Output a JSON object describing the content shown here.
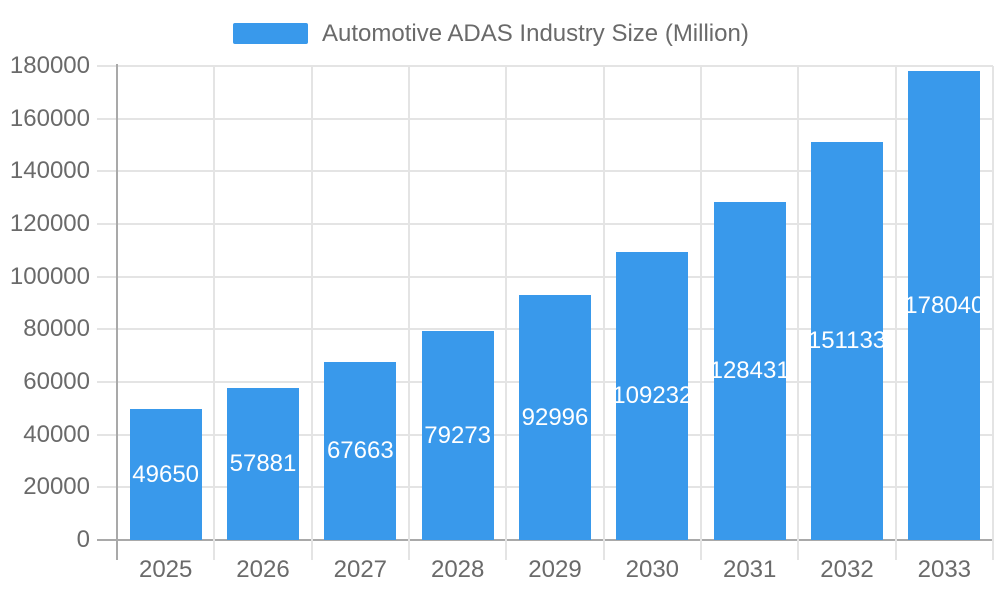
{
  "legend": {
    "label": "Automotive ADAS Industry Size (Million)"
  },
  "chart_data": {
    "type": "bar",
    "title": "Automotive ADAS Industry Size (Million)",
    "categories": [
      "2025",
      "2026",
      "2027",
      "2028",
      "2029",
      "2030",
      "2031",
      "2032",
      "2033"
    ],
    "values": [
      49650,
      57881,
      67663,
      79273,
      92996,
      109232,
      128431,
      151133,
      178040
    ],
    "value_labels": [
      "49650",
      "57881",
      "67663",
      "79273",
      "92996",
      "109232",
      "128431",
      "151133",
      "178040"
    ],
    "xlabel": "",
    "ylabel": "",
    "ylim": [
      0,
      180000
    ],
    "ytick_step": 20000,
    "ytick_labels": [
      "0",
      "20000",
      "40000",
      "60000",
      "80000",
      "100000",
      "120000",
      "140000",
      "160000",
      "180000"
    ],
    "grid": "on",
    "legend_position": "top",
    "colors": {
      "bar": "#3999EB",
      "value_label": "#FFFFFF",
      "axis_text": "#6A6A6A",
      "grid_line": "#E4E4E4",
      "axis_line": "#A9A9A9",
      "background": "#FFFFFF"
    }
  }
}
